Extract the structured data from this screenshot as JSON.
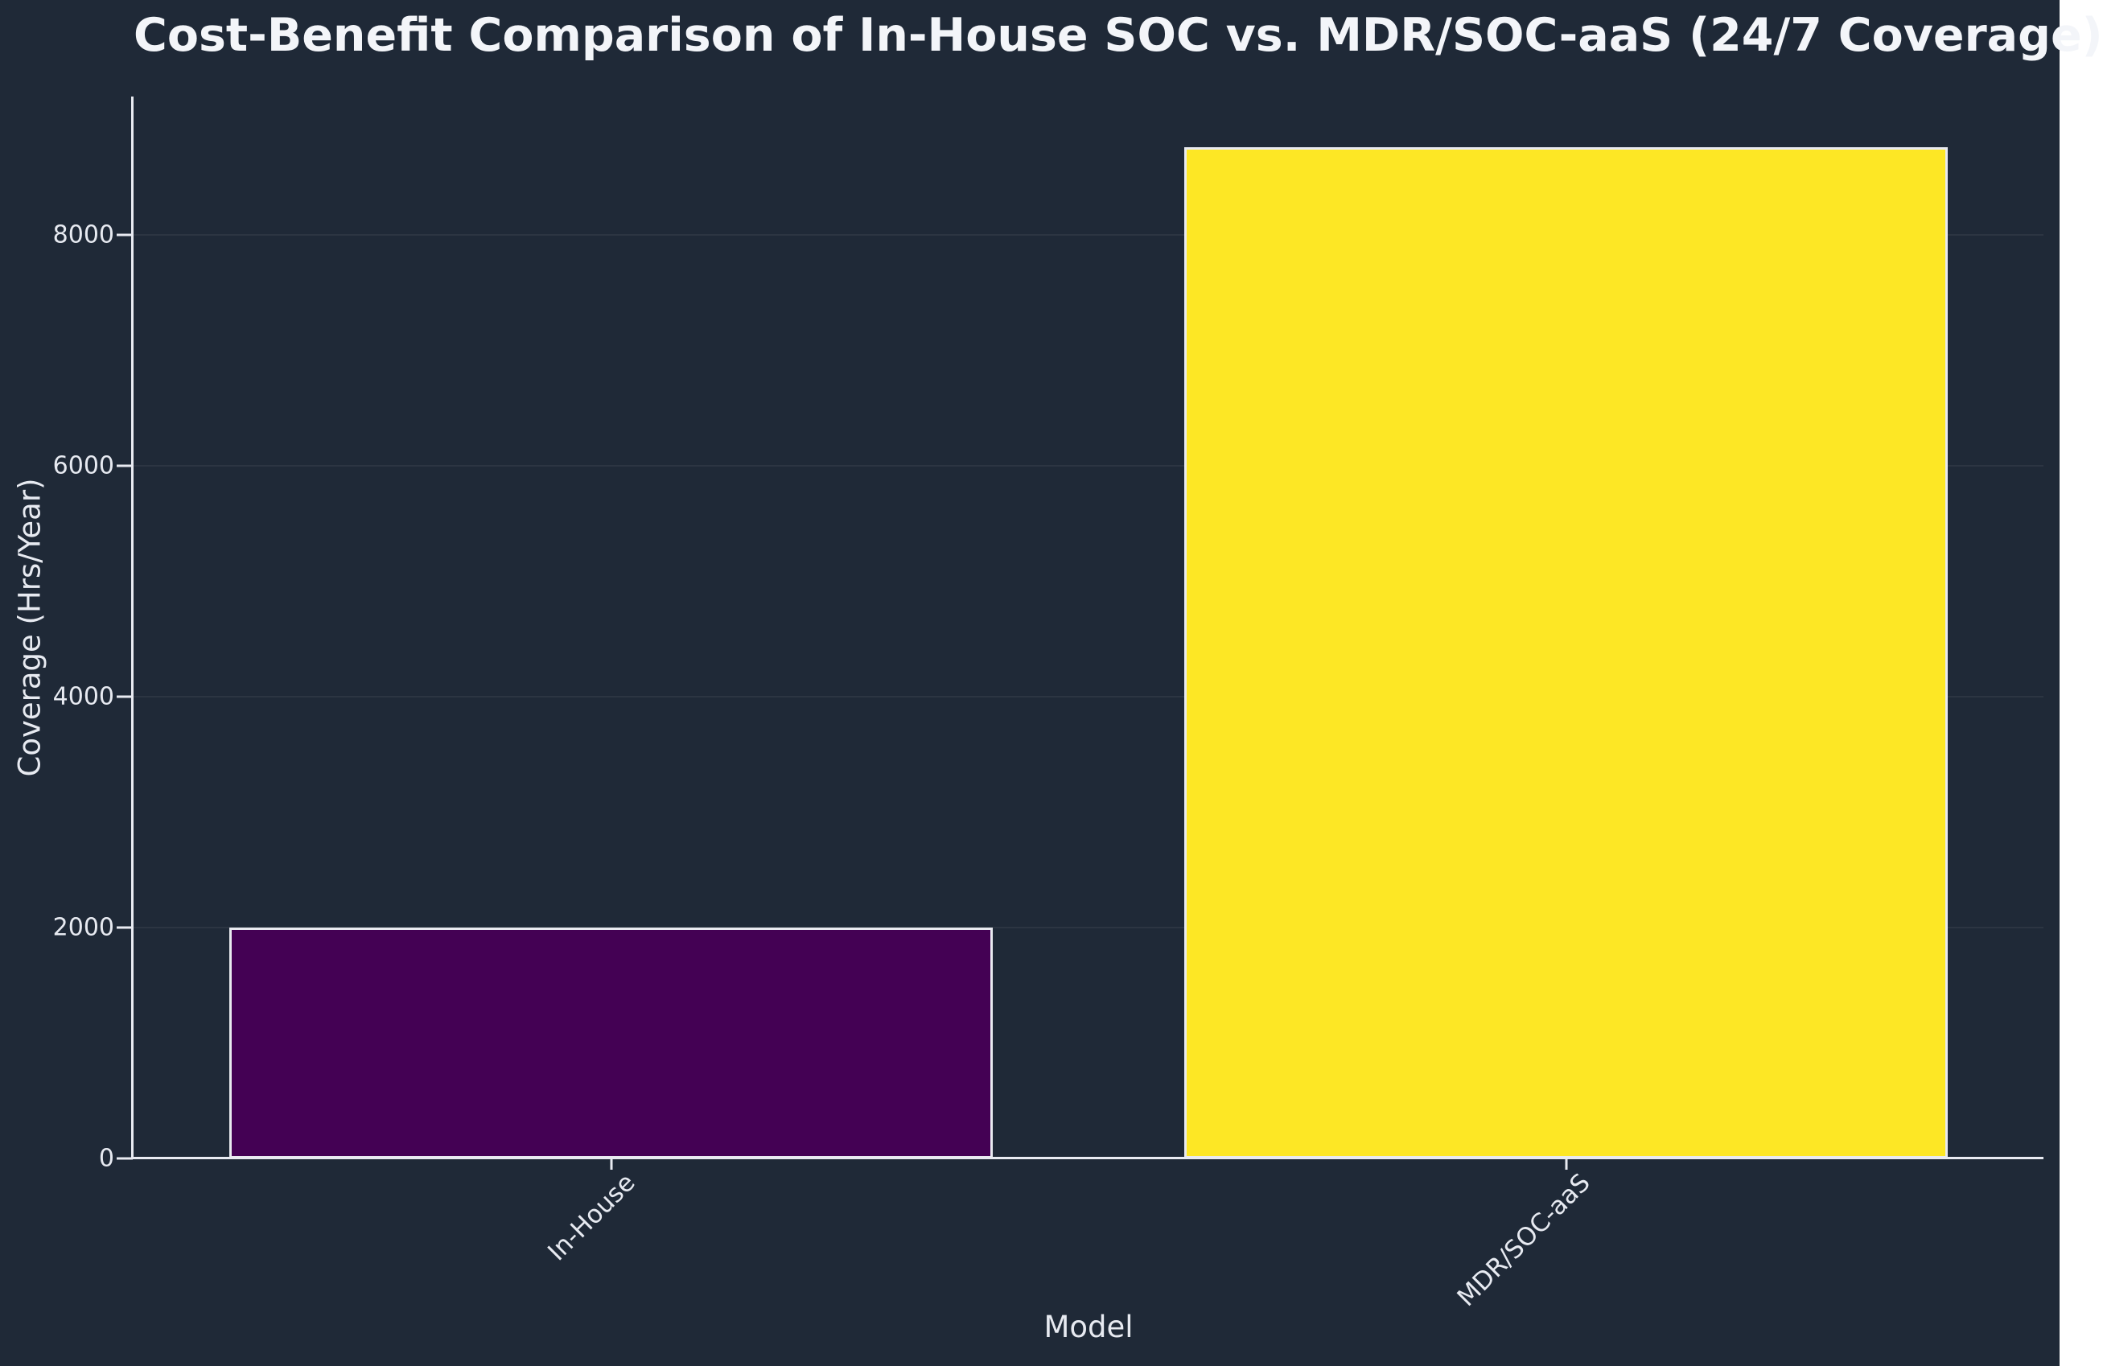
{
  "chart_data": {
    "type": "bar",
    "title": "Cost-Benefit Comparison of In-House SOC vs. MDR/SOC-aaS (24/7 Coverage)",
    "xlabel": "Model",
    "ylabel": "Coverage (Hrs/Year)",
    "categories": [
      "In-House",
      "MDR/SOC-aaS"
    ],
    "values": [
      2000,
      8760
    ],
    "yticks": [
      0,
      2000,
      4000,
      6000,
      8000
    ],
    "ylim": [
      0,
      9198
    ],
    "grid": "horizontal",
    "x_tick_rotation_deg": 45,
    "legend": "none",
    "colors": {
      "background": "#1f2937",
      "title_text": "#f3f5f9",
      "text": "#e7eaf1",
      "axis": "#e9ebf2",
      "grid": "rgba(255,255,255,0.06)",
      "bar_edge": "#e9eaf0",
      "bar_fills": [
        "#440154",
        "#fde725"
      ]
    }
  }
}
